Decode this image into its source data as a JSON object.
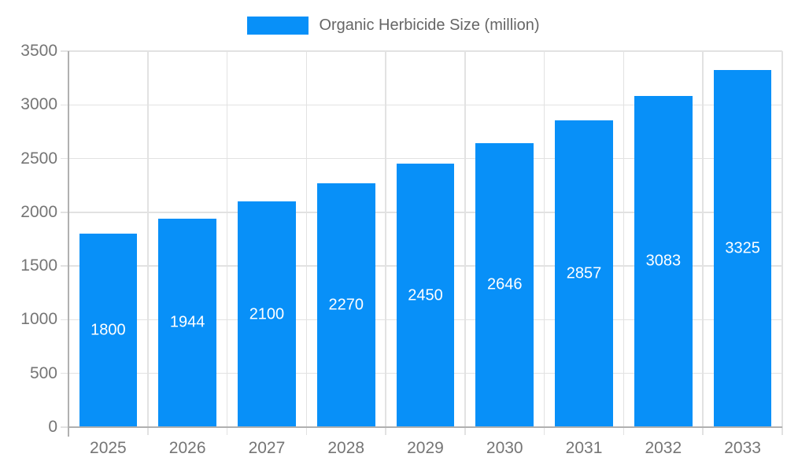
{
  "legend": {
    "label": "Organic Herbicide Size (million)"
  },
  "colors": {
    "bar": "#0890f8",
    "grid": "#e2e2e2",
    "axis": "#b0b0b0",
    "tick_label": "#757575",
    "legend_text": "#666666",
    "value_label": "#ffffff",
    "background": "#ffffff"
  },
  "chart_data": {
    "type": "bar",
    "title": "Organic Herbicide Size (million)",
    "categories": [
      "2025",
      "2026",
      "2027",
      "2028",
      "2029",
      "2030",
      "2031",
      "2032",
      "2033"
    ],
    "values": [
      1800,
      1944,
      2100,
      2270,
      2450,
      2646,
      2857,
      3083,
      3325
    ],
    "value_labels_position": "inside-center",
    "xlabel": "",
    "ylabel": "",
    "ylim": [
      0,
      3500
    ],
    "ytick_step": 500,
    "yticks": [
      0,
      500,
      1000,
      1500,
      2000,
      2500,
      3000,
      3500
    ],
    "grid": true,
    "legend_position": "top-center"
  }
}
